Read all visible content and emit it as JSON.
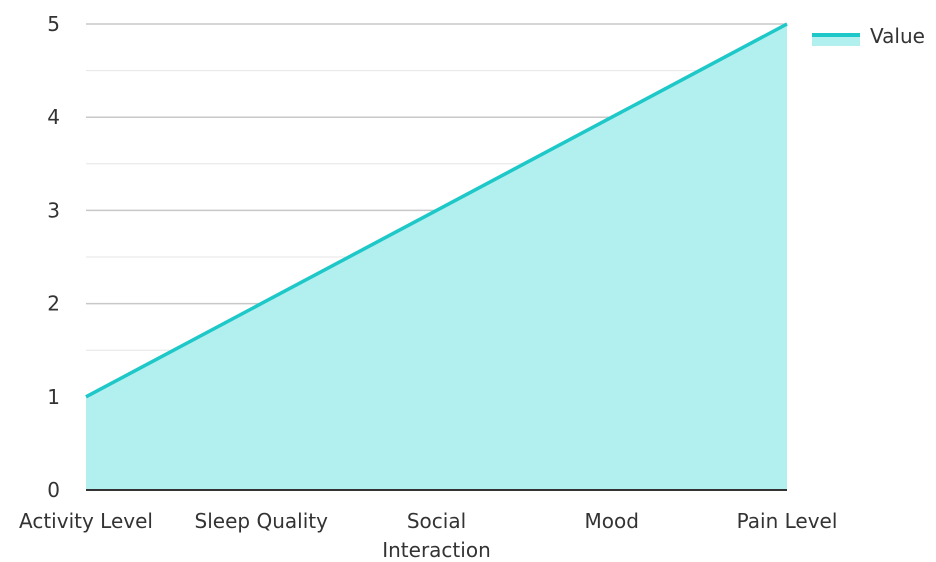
{
  "chart_data": {
    "type": "area",
    "categories": [
      [
        "Activity Level"
      ],
      [
        "Sleep Quality"
      ],
      [
        "Social",
        "Interaction"
      ],
      [
        "Mood"
      ],
      [
        "Pain Level"
      ]
    ],
    "series": [
      {
        "name": "Value",
        "values": [
          1,
          2,
          3,
          4,
          5
        ],
        "color": "#1ec8c8",
        "fill": "#b2efef"
      }
    ],
    "ylim": [
      0,
      5
    ],
    "yticks": [
      0,
      1,
      2,
      3,
      4,
      5
    ],
    "grid": true,
    "legend": "top-right"
  }
}
